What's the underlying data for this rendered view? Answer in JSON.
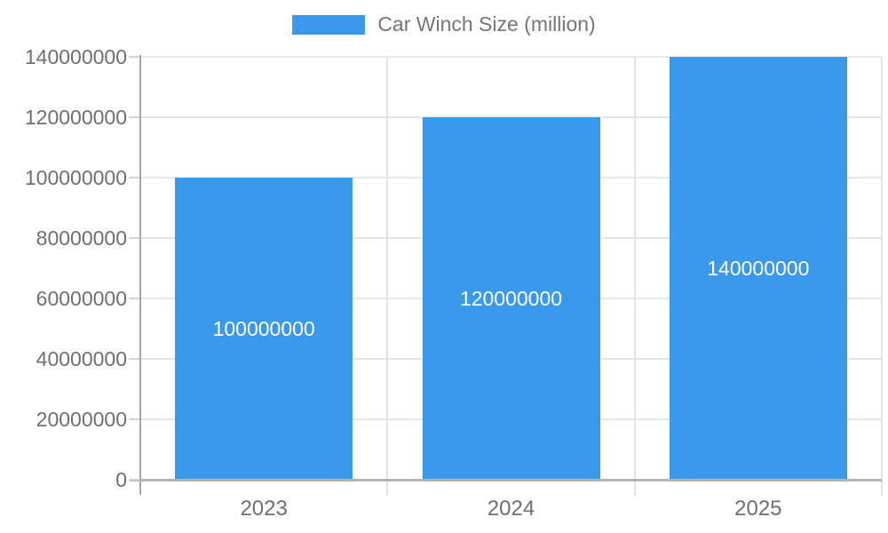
{
  "legend": {
    "label": "Car Winch Size (million)",
    "swatch_color": "#3b99ec"
  },
  "chart_data": {
    "type": "bar",
    "title": "Car Winch Size (million)",
    "categories": [
      "2023",
      "2024",
      "2025"
    ],
    "values": [
      100000000,
      120000000,
      140000000
    ],
    "bar_labels": [
      "100000000",
      "120000000",
      "140000000"
    ],
    "xlabel": "",
    "ylabel": "",
    "ylim": [
      0,
      140000000
    ],
    "y_ticks": [
      0,
      20000000,
      40000000,
      60000000,
      80000000,
      100000000,
      120000000,
      140000000
    ],
    "y_tick_labels": [
      "0",
      "20000000",
      "40000000",
      "60000000",
      "80000000",
      "100000000",
      "120000000",
      "140000000"
    ],
    "grid": true,
    "legend_position": "top-center",
    "colors": {
      "bar": "#3b99ec",
      "bar_label_text": "#ffffff",
      "axis_text": "#6f6f6f",
      "gridline": "#e6e6e6"
    }
  }
}
